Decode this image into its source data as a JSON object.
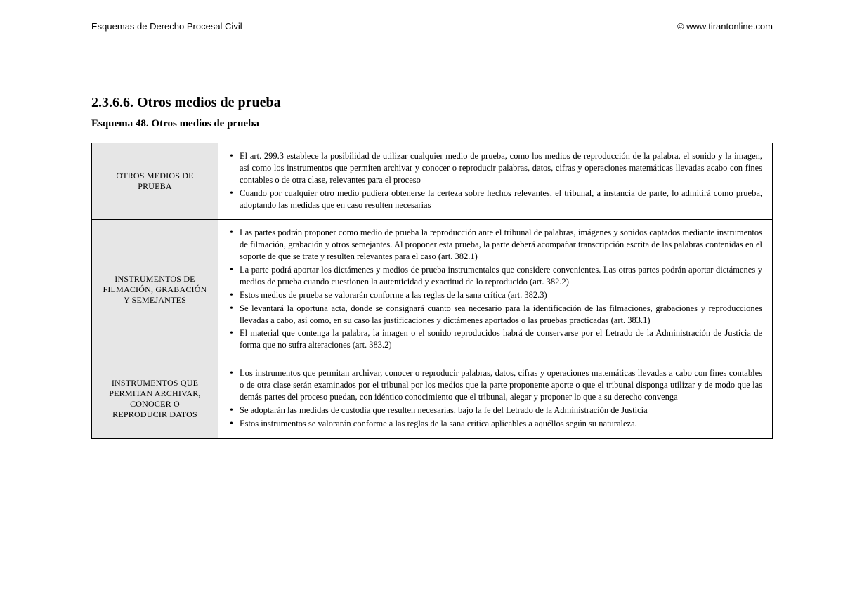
{
  "header": {
    "left": "Esquemas de Derecho Procesal Civil",
    "right": "© www.tirantonline.com"
  },
  "section": {
    "number": "2.3.6.6.",
    "title": "Otros medios de prueba"
  },
  "subtitle": "Esquema 48. Otros medios de prueba",
  "rows": [
    {
      "label": "OTROS MEDIOS DE PRUEBA",
      "bullets": [
        "El art. 299.3 establece la posibilidad de utilizar cualquier medio de prueba, como los medios de reproducción de la palabra, el sonido y la imagen, así como los instrumentos que permiten archivar y conocer o reproducir palabras, datos, cifras y operaciones matemáticas llevadas  acabo con fines contables o de otra clase, relevantes para el proceso",
        "Cuando por cualquier otro medio pudiera obtenerse la certeza sobre hechos relevantes, el tribunal, a instancia de parte, lo admitirá como prueba, adoptando las medidas que en caso resulten necesarias"
      ]
    },
    {
      "label": "INSTRUMENTOS DE FILMACIÓN, GRABACIÓN Y SEMEJANTES",
      "bullets": [
        "Las partes podrán proponer como medio de prueba la reproducción ante el tribunal de palabras, imágenes y sonidos captados mediante instrumentos de filmación, grabación y otros semejantes. Al proponer esta prueba, la parte deberá acompañar transcripción escrita de las palabras contenidas en el soporte de que se trate y resulten relevantes para el caso (art. 382.1)",
        "La parte podrá aportar los dictámenes y medios de prueba instrumentales que considere convenientes. Las otras partes podrán aportar dictámenes y medios de prueba cuando cuestionen la autenticidad y exactitud de lo reproducido (art. 382.2)",
        "Estos medios de prueba se valorarán conforme a las reglas de la sana crítica (art. 382.3)",
        "Se levantará la oportuna acta, donde se consignará cuanto sea necesario para la identificación de las filmaciones, grabaciones y reproducciones llevadas a cabo, así como, en su caso las justificaciones y dictámenes aportados o las pruebas practicadas (art. 383.1)",
        "El material que contenga la palabra, la imagen o el sonido reproducidos habrá de conservarse por el Letrado de la Administración de Justicia de forma que no sufra alteraciones (art. 383.2)"
      ]
    },
    {
      "label": "INSTRUMENTOS QUE PERMITAN ARCHIVAR, CONOCER O REPRODUCIR DATOS",
      "bullets": [
        "Los instrumentos que permitan archivar, conocer o reproducir palabras, datos, cifras y operaciones matemáticas llevadas a cabo con fines contables o de otra clase serán examinados por el tribunal por los medios que la parte proponente aporte o que el tribunal disponga utilizar y de modo que las demás partes del proceso puedan, con idéntico conocimiento que el tribunal, alegar y proponer lo que a su derecho convenga",
        "Se adoptarán las medidas de custodia que resulten necesarias, bajo la fe del Letrado de la Administración de Justicia",
        "Estos instrumentos se valorarán conforme a las reglas de la sana crítica aplicables a aquéllos según su naturaleza."
      ]
    }
  ]
}
